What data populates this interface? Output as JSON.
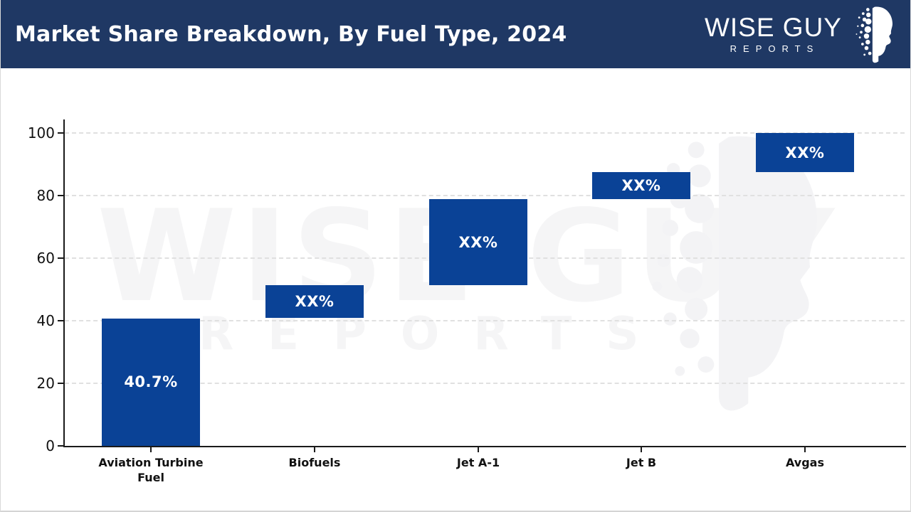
{
  "header": {
    "title": "Market Share Breakdown, By Fuel Type, 2024",
    "logo": {
      "line1": "WISE GUY",
      "line2": "REPORTS",
      "icon": "dotted-face-profile"
    }
  },
  "watermark": {
    "line1": "WISE GUY",
    "line2": "REPORTS",
    "icon": "dotted-face-profile"
  },
  "colors": {
    "header_bg": "#1f3864",
    "bar": "#0a4296",
    "grid": "#e0e0e0",
    "axis": "#1a1a1a",
    "bar_label": "#ffffff",
    "watermark": "#f5f5f6"
  },
  "chart_data": {
    "type": "bar",
    "subtype": "waterfall",
    "title": "Market Share Breakdown, By Fuel Type, 2024",
    "xlabel": "",
    "ylabel": "",
    "ylim": [
      0,
      104
    ],
    "yticks": [
      0,
      20,
      40,
      60,
      80,
      100
    ],
    "grid": "horizontal dashed",
    "legend": "none",
    "categories": [
      "Aviation Turbine Fuel",
      "Biofuels",
      "Jet A-1",
      "Jet B",
      "Avgas"
    ],
    "segments": [
      {
        "category": "Aviation Turbine Fuel",
        "start": 0,
        "end": 40.7,
        "value": 40.7,
        "label": "40.7%"
      },
      {
        "category": "Biofuels",
        "start": 41.0,
        "end": 51.3,
        "value": 10.3,
        "label": "XX%"
      },
      {
        "category": "Jet A-1",
        "start": 51.4,
        "end": 78.8,
        "value": 27.4,
        "label": "XX%"
      },
      {
        "category": "Jet B",
        "start": 78.8,
        "end": 87.6,
        "value": 8.8,
        "label": "XX%"
      },
      {
        "category": "Avgas",
        "start": 87.5,
        "end": 100.0,
        "value": 12.5,
        "label": "XX%"
      }
    ]
  }
}
